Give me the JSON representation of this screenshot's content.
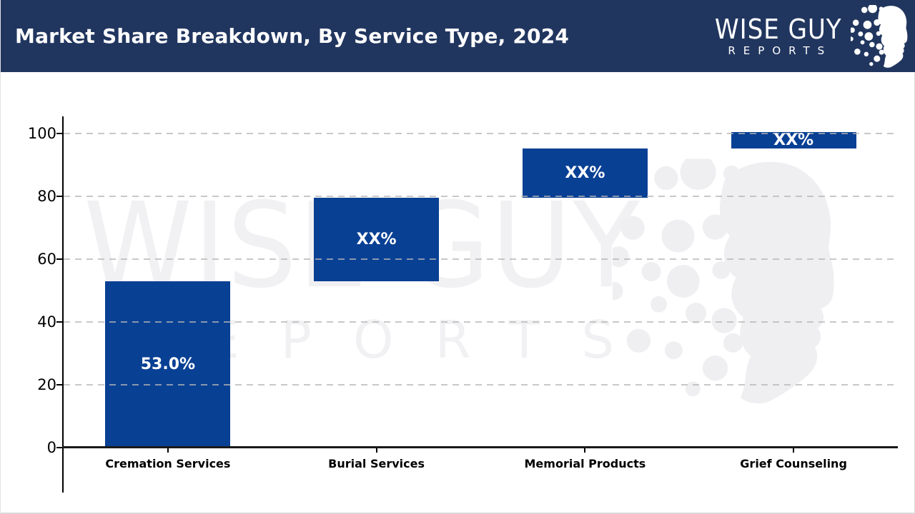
{
  "header": {
    "title": "Market Share Breakdown, By Service Type, 2024",
    "brand_line1": "WISE GUY",
    "brand_line2": "REPORTS"
  },
  "watermark": {
    "line1": "WISE GUY",
    "line2": "REPORTS"
  },
  "chart_data": {
    "type": "bar",
    "subtype": "waterfall",
    "title": "Market Share Breakdown, By Service Type, 2024",
    "categories": [
      "Cremation Services",
      "Burial Services",
      "Memorial Products",
      "Grief Counseling"
    ],
    "bars": [
      {
        "category": "Cremation Services",
        "label": "53.0%",
        "start": 0,
        "end": 53.0
      },
      {
        "category": "Burial Services",
        "label": "XX%",
        "start": 53.0,
        "end": 79.5
      },
      {
        "category": "Memorial Products",
        "label": "XX%",
        "start": 79.5,
        "end": 95.3
      },
      {
        "category": "Grief Counseling",
        "label": "XX%",
        "start": 95.3,
        "end": 100.5
      }
    ],
    "yticks": [
      0,
      20,
      40,
      60,
      80,
      100
    ],
    "ylim": [
      0,
      105.5
    ],
    "grid": "horizontal-dashed",
    "legend": "none",
    "bar_color": "#084094",
    "bar_label_color": "#ffffff",
    "gridline_color": "#d9d9d9",
    "axis_color": "#000000",
    "header_bg": "#21365f",
    "watermark_color": "#f1f1f3"
  }
}
